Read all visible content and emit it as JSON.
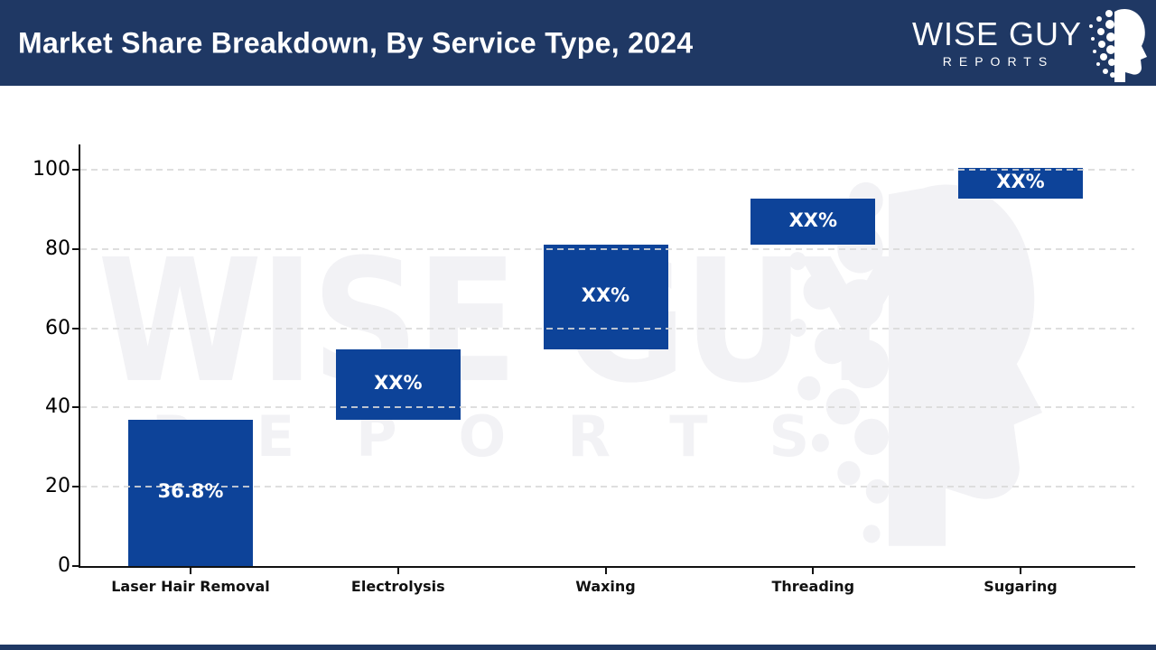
{
  "header": {
    "title": "Market Share Breakdown, By Service Type, 2024",
    "logo": {
      "wordmark": "WISE GUY",
      "subtext": "REPORTS"
    },
    "bg_color": "#1f3864",
    "text_color": "#ffffff"
  },
  "watermark": {
    "wordmark": "WISE GUY",
    "subtext": "REPORTS",
    "head_icon": "head-profile-dots",
    "color": "#f2f2f5"
  },
  "footer": {
    "bg_color": "#1f3864"
  },
  "chart_data": {
    "type": "bar",
    "subtype": "waterfall",
    "title": "Market Share Breakdown, By Service Type, 2024",
    "categories": [
      "Laser Hair Removal",
      "Electrolysis",
      "Waxing",
      "Threading",
      "Sugaring"
    ],
    "segments": [
      {
        "category": "Laser Hair Removal",
        "start": 0,
        "end": 36.8,
        "label": "36.8%"
      },
      {
        "category": "Electrolysis",
        "start": 36.8,
        "end": 54.7,
        "label": "XX%"
      },
      {
        "category": "Waxing",
        "start": 54.7,
        "end": 81.0,
        "label": "XX%"
      },
      {
        "category": "Threading",
        "start": 81.0,
        "end": 92.6,
        "label": "XX%"
      },
      {
        "category": "Sugaring",
        "start": 92.6,
        "end": 100.4,
        "label": "XX%"
      }
    ],
    "y_ticks": [
      0,
      20,
      40,
      60,
      80,
      100
    ],
    "ylim": [
      0,
      105
    ],
    "xlabel": "",
    "ylabel": "",
    "grid": "horizontal-dashed",
    "legend_position": "none",
    "bar_color": "#0d4399",
    "bar_label_color": "#ffffff",
    "axis_color": "#111111",
    "grid_color": "#d9d9d9"
  }
}
